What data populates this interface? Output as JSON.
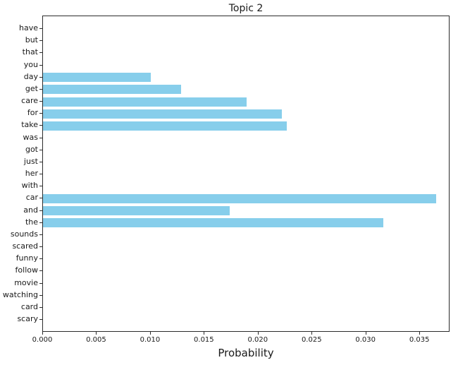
{
  "chart_data": {
    "type": "bar",
    "orientation": "horizontal",
    "title": "Topic 2",
    "xlabel": "Probability",
    "ylabel": "",
    "categories": [
      "have",
      "but",
      "that",
      "you",
      "day",
      "get",
      "care",
      "for",
      "take",
      "was",
      "got",
      "just",
      "her",
      "with",
      "car",
      "and",
      "the",
      "sounds",
      "scared",
      "funny",
      "follow",
      "movie",
      "watching",
      "card",
      "scary"
    ],
    "values": [
      0,
      0,
      0,
      0,
      0.01,
      0.0128,
      0.0189,
      0.0222,
      0.0226,
      0,
      0,
      0,
      0,
      0,
      0.0365,
      0.0173,
      0.0316,
      0,
      0,
      0,
      0,
      0,
      0,
      0,
      0
    ],
    "xlim": [
      0,
      0.0378
    ],
    "xticks": [
      0.0,
      0.005,
      0.01,
      0.015,
      0.02,
      0.025,
      0.03,
      0.035
    ],
    "xtick_labels": [
      "0.000",
      "0.005",
      "0.010",
      "0.015",
      "0.020",
      "0.025",
      "0.030",
      "0.035"
    ],
    "bar_color": "#87CEEB",
    "axis_color": "#2b2b2b",
    "grid": false,
    "legend": null
  }
}
